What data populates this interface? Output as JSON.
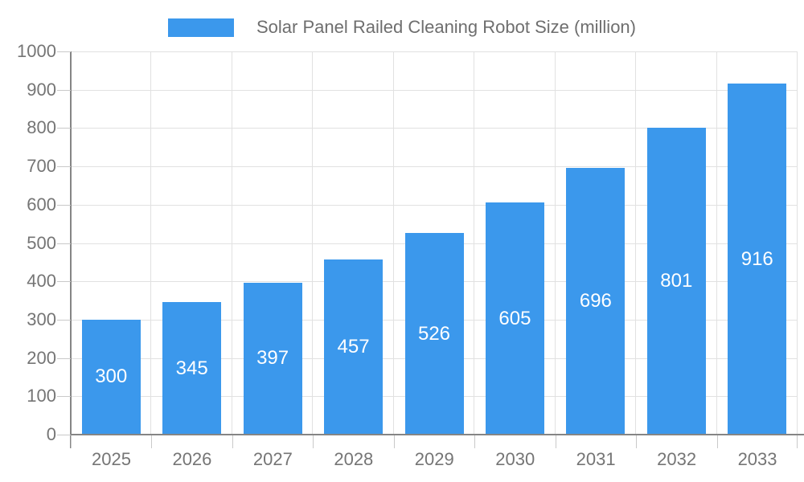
{
  "chart_data": {
    "type": "bar",
    "title": "Solar Panel Railed Cleaning Robot Size (million)",
    "categories": [
      "2025",
      "2026",
      "2027",
      "2028",
      "2029",
      "2030",
      "2031",
      "2032",
      "2033"
    ],
    "values": [
      300,
      345,
      397,
      457,
      526,
      605,
      696,
      801,
      916
    ],
    "xlabel": "",
    "ylabel": "",
    "ylim": [
      0,
      1000
    ],
    "yticks": [
      0,
      100,
      200,
      300,
      400,
      500,
      600,
      700,
      800,
      900,
      1000
    ],
    "grid": true,
    "legend_position": "top-center",
    "bar_value_labels": "centered-inside-white"
  },
  "legend": {
    "label": "Solar Panel Railed Cleaning Robot Size (million)"
  },
  "colors": {
    "bar": "#3B98EC",
    "bar_label": "#FFFFFF",
    "grid": "#E1E1E1",
    "axis": "#858585",
    "tick": "#C9C9C9",
    "axis_text": "#757575",
    "legend_text": "#6E6E6E",
    "background": "#FFFFFF"
  }
}
